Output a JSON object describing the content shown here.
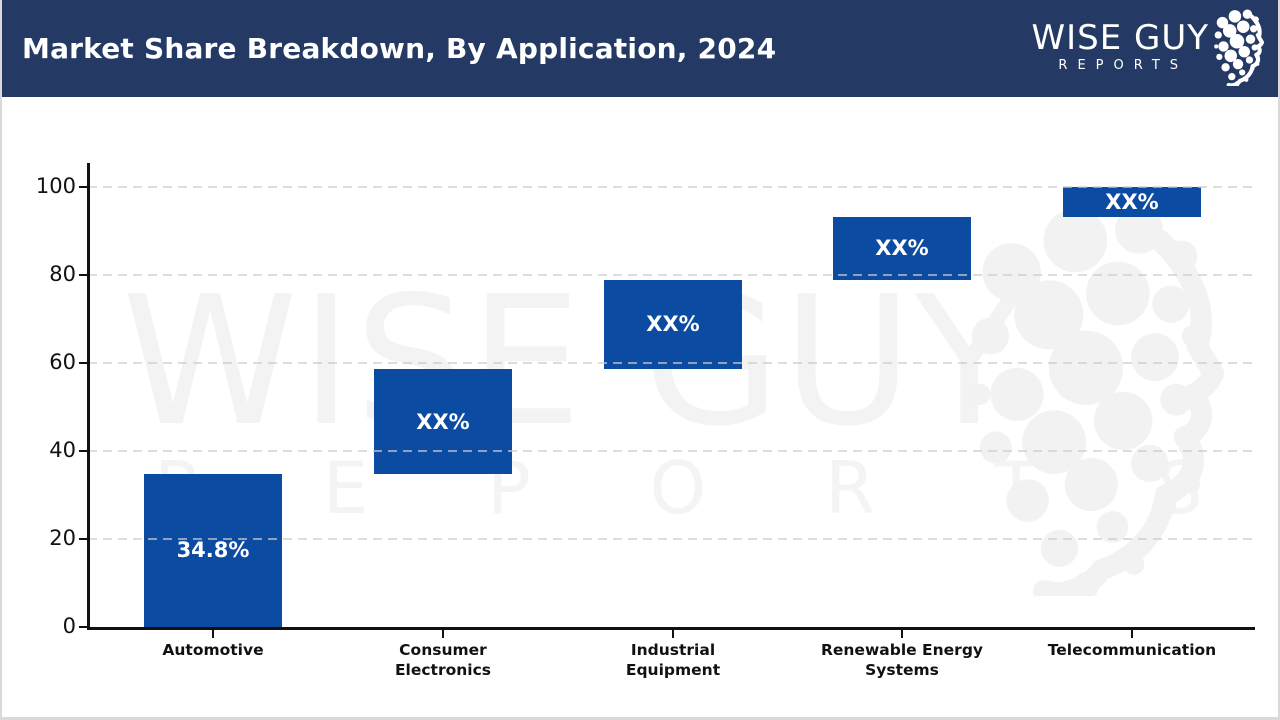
{
  "header": {
    "title": "Market Share Breakdown, By Application, 2024",
    "logo": {
      "line1": "WISE GUY",
      "line2": "REPORTS"
    }
  },
  "watermark": {
    "line1": "WISE GUY",
    "line2": "R E P O R T S"
  },
  "chart_data": {
    "type": "bar",
    "subtype": "waterfall",
    "title": "Market Share Breakdown, By Application, 2024",
    "categories": [
      "Automotive",
      "Consumer Electronics",
      "Industrial Equipment",
      "Renewable Energy Systems",
      "Telecommunication"
    ],
    "category_display": [
      "Automotive",
      "Consumer\nElectronics",
      "Industrial\nEquipment",
      "Renewable Energy\nSystems",
      "Telecommunication"
    ],
    "segments": [
      {
        "label": "34.8%",
        "start": 0,
        "end": 34.8,
        "value": 34.8
      },
      {
        "label": "XX%",
        "start": 34.8,
        "end": 58.6,
        "value": 23.8
      },
      {
        "label": "XX%",
        "start": 58.6,
        "end": 78.9,
        "value": 20.3
      },
      {
        "label": "XX%",
        "start": 78.9,
        "end": 93.2,
        "value": 14.3
      },
      {
        "label": "XX%",
        "start": 93.2,
        "end": 100,
        "value": 6.8
      }
    ],
    "xlabel": "",
    "ylabel": "",
    "ylim": [
      0,
      100
    ],
    "yticks": [
      0,
      20,
      40,
      60,
      80,
      100
    ],
    "grid": "horizontal dashed, drawn above bars",
    "legend": "none"
  },
  "colors": {
    "header_bg": "#243a64",
    "bar": "#0c4ba2",
    "bar_label": "#ffffff",
    "grid": "#dcdcdc",
    "axis": "#111111",
    "watermark": "#f3f3f3",
    "page_border": "#d9d9d9"
  }
}
